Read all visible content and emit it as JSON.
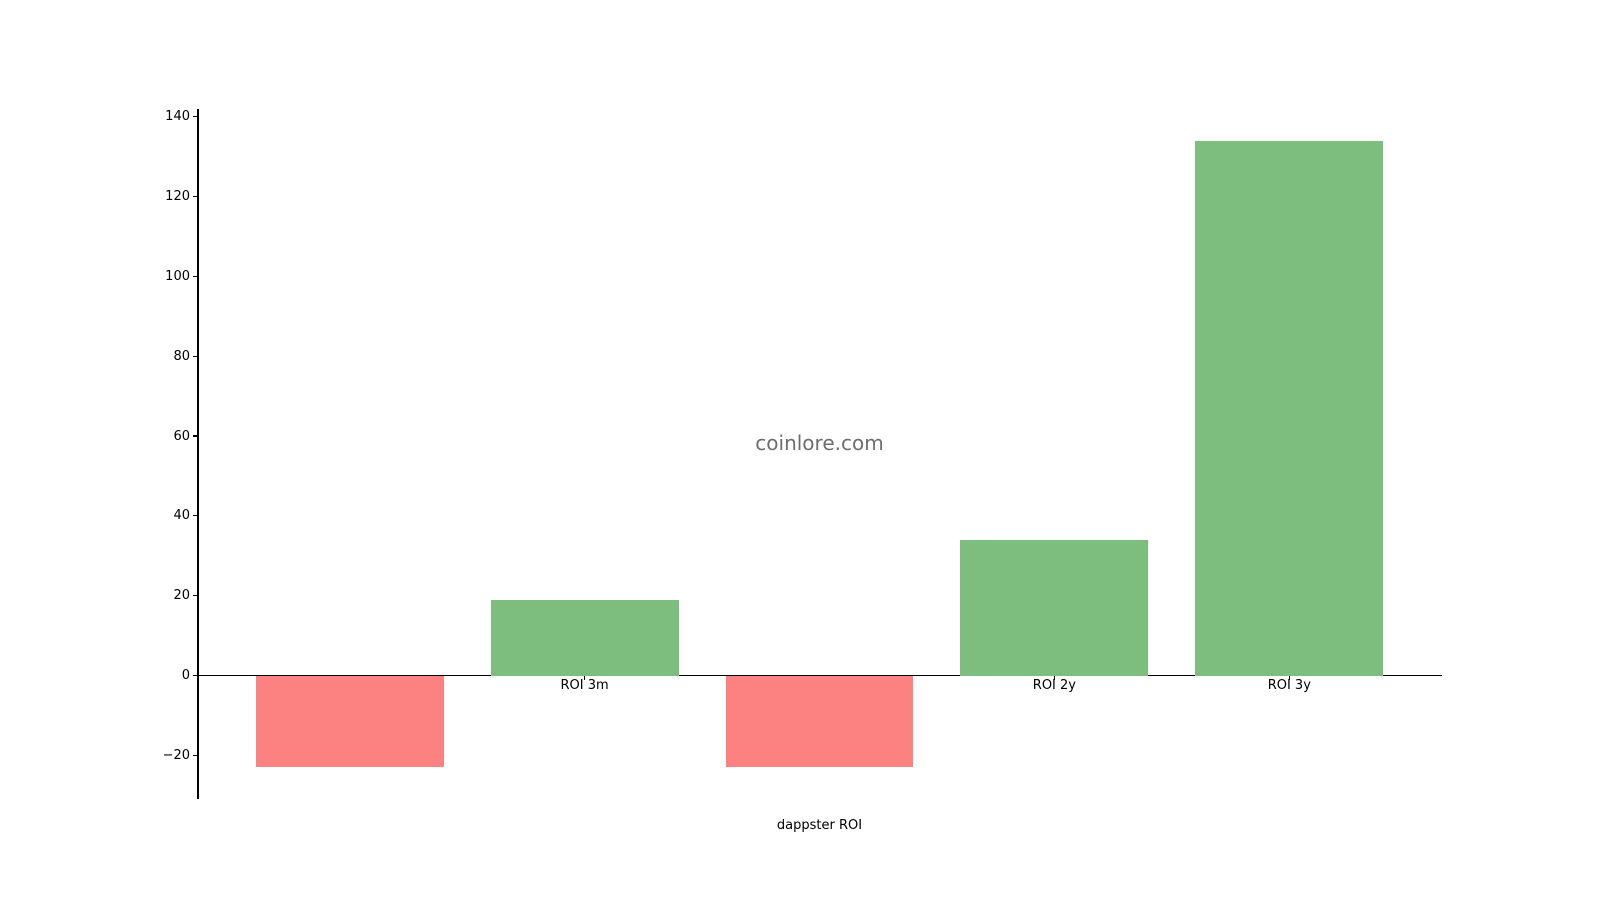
{
  "chart_data": {
    "type": "bar",
    "title": "",
    "xlabel": "dappster ROI",
    "ylabel": "",
    "watermark": "coinlore.com",
    "categories": [
      "",
      "ROI 3m",
      "",
      "ROI 2y",
      "ROI 3y"
    ],
    "values": [
      -23,
      19,
      -23,
      34,
      134
    ],
    "bar_colors": [
      "#fc8181",
      "#7dbe7f",
      "#fc8181",
      "#7dbe7f",
      "#7dbe7f"
    ],
    "label_visible": [
      false,
      true,
      false,
      true,
      true
    ],
    "y_tick_values": [
      -20,
      0,
      20,
      40,
      60,
      80,
      100,
      120,
      140
    ],
    "y_tick_labels": [
      "−20",
      "0",
      "20",
      "40",
      "60",
      "80",
      "100",
      "120",
      "140"
    ],
    "ylim": [
      -30.9,
      141.9
    ],
    "xlim": [
      -0.65,
      4.65
    ],
    "bar_width_units": 0.8,
    "grid": "off",
    "legend": "none",
    "colors": {
      "positive": "#7dbe7f",
      "negative": "#fc8181",
      "axis": "#000000",
      "watermark": "#6e6e6e",
      "background": "#ffffff"
    }
  }
}
